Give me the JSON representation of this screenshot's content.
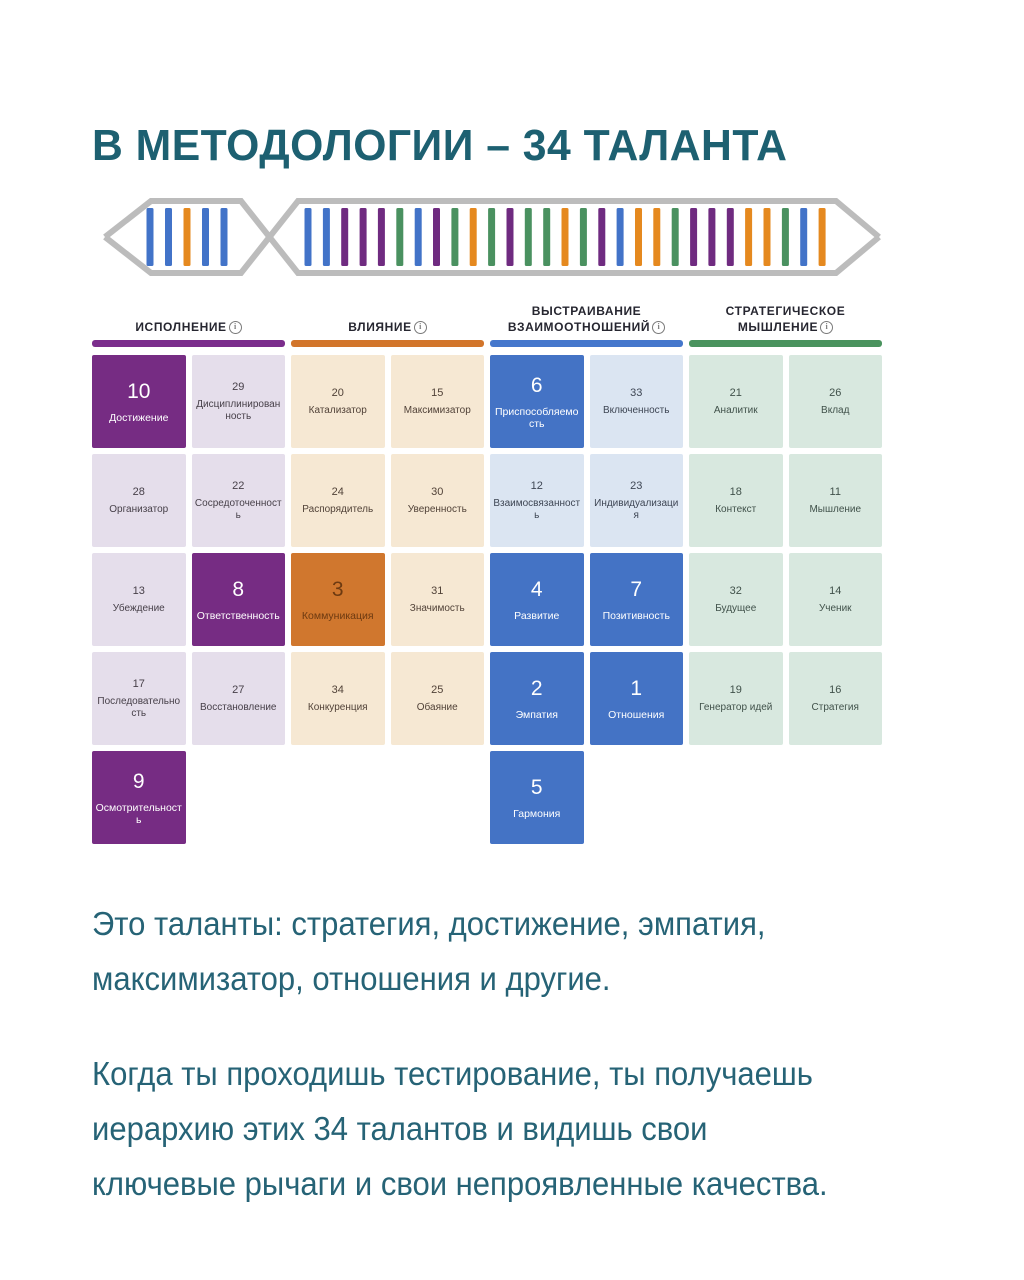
{
  "title": "В МЕТОДОЛОГИИ – 34 ТАЛАНТА",
  "colors": {
    "title_text": "#1d6071",
    "paragraph_text": "#266376",
    "header_text": "#262630"
  },
  "dna": {
    "palette": {
      "blue": "#4273c8",
      "orange": "#e5891f",
      "purple": "#6f2b80",
      "green": "#4a9160",
      "outline": "#bcbcbc"
    },
    "left_bars": [
      "blue",
      "blue",
      "orange",
      "blue",
      "blue"
    ],
    "right_bars": [
      "blue",
      "blue",
      "purple",
      "purple",
      "purple",
      "green",
      "blue",
      "purple",
      "green",
      "orange",
      "green",
      "purple",
      "green",
      "green",
      "orange",
      "green",
      "purple",
      "blue",
      "orange",
      "orange",
      "green",
      "purple",
      "purple",
      "purple",
      "orange",
      "orange",
      "green",
      "blue",
      "orange"
    ]
  },
  "grid": {
    "info_glyph": "i",
    "groups": [
      {
        "id": "executing",
        "header_lines": [
          "ИСПОЛНЕНИЕ"
        ],
        "underline": "#7b2d8c",
        "light_bg": "#e5deeb",
        "light_text": "#474049",
        "dark_bg": "#762c83",
        "dark_text": "#ffffff",
        "tiles": [
          {
            "num": "10",
            "label": "Достижение",
            "hl": true
          },
          {
            "num": "29",
            "label": "Дисциплинированность",
            "hl": false
          },
          {
            "num": "28",
            "label": "Организатор",
            "hl": false
          },
          {
            "num": "22",
            "label": "Сосредоточенность",
            "hl": false
          },
          {
            "num": "13",
            "label": "Убеждение",
            "hl": false
          },
          {
            "num": "8",
            "label": "Ответственность",
            "hl": true
          },
          {
            "num": "17",
            "label": "Последовательность",
            "hl": false
          },
          {
            "num": "27",
            "label": "Восстановление",
            "hl": false
          },
          {
            "num": "9",
            "label": "Осмотрительность",
            "hl": true
          }
        ]
      },
      {
        "id": "influencing",
        "header_lines": [
          "ВЛИЯНИЕ"
        ],
        "underline": "#d2752b",
        "light_bg": "#f6e8d3",
        "light_text": "#514238",
        "dark_bg": "#d0772e",
        "dark_text": "#6d3a11",
        "tiles": [
          {
            "num": "20",
            "label": "Катализатор",
            "hl": false
          },
          {
            "num": "15",
            "label": "Максимизатор",
            "hl": false
          },
          {
            "num": "24",
            "label": "Распорядитель",
            "hl": false
          },
          {
            "num": "30",
            "label": "Уверенность",
            "hl": false
          },
          {
            "num": "3",
            "label": "Коммуникация",
            "hl": true
          },
          {
            "num": "31",
            "label": "Значимость",
            "hl": false
          },
          {
            "num": "34",
            "label": "Конкуренция",
            "hl": false
          },
          {
            "num": "25",
            "label": "Обаяние",
            "hl": false
          }
        ]
      },
      {
        "id": "relationship-building",
        "header_lines": [
          "ВЫСТРАИВАНИЕ",
          "ВЗАИМООТНОШЕНИЙ"
        ],
        "underline": "#4577cc",
        "light_bg": "#dbe5f2",
        "light_text": "#3e4654",
        "dark_bg": "#4473c5",
        "dark_text": "#ffffff",
        "tiles": [
          {
            "num": "6",
            "label": "Приспособляемость",
            "hl": true
          },
          {
            "num": "33",
            "label": "Включенность",
            "hl": false
          },
          {
            "num": "12",
            "label": "Взаимосвязанность",
            "hl": false
          },
          {
            "num": "23",
            "label": "Индивидуализация",
            "hl": false
          },
          {
            "num": "4",
            "label": "Развитие",
            "hl": true
          },
          {
            "num": "7",
            "label": "Позитивность",
            "hl": true
          },
          {
            "num": "2",
            "label": "Эмпатия",
            "hl": true
          },
          {
            "num": "1",
            "label": "Отношения",
            "hl": true
          },
          {
            "num": "5",
            "label": "Гармония",
            "hl": true
          }
        ]
      },
      {
        "id": "strategic-thinking",
        "header_lines": [
          "СТРАТЕГИЧЕСКОЕ",
          "МЫШЛЕНИЕ"
        ],
        "underline": "#4a935e",
        "light_bg": "#d8e8df",
        "light_text": "#40514a",
        "dark_bg": "#4a935e",
        "dark_text": "#ffffff",
        "tiles": [
          {
            "num": "21",
            "label": "Аналитик",
            "hl": false
          },
          {
            "num": "26",
            "label": "Вклад",
            "hl": false
          },
          {
            "num": "18",
            "label": "Контекст",
            "hl": false
          },
          {
            "num": "11",
            "label": "Мышление",
            "hl": false
          },
          {
            "num": "32",
            "label": "Будущее",
            "hl": false
          },
          {
            "num": "14",
            "label": "Ученик",
            "hl": false
          },
          {
            "num": "19",
            "label": "Генератор идей",
            "hl": false
          },
          {
            "num": "16",
            "label": "Стратегия",
            "hl": false
          }
        ]
      }
    ]
  },
  "paragraphs": [
    {
      "lines": [
        "Это таланты: стратегия, достижение, эмпатия,",
        "максимизатор, отношения и другие."
      ]
    },
    {
      "lines": [
        "Когда ты проходишь тестирование, ты получаешь",
        "иерархию этих 34 талантов и видишь свои",
        "ключевые рычаги и свои непроявленные качества."
      ]
    }
  ]
}
